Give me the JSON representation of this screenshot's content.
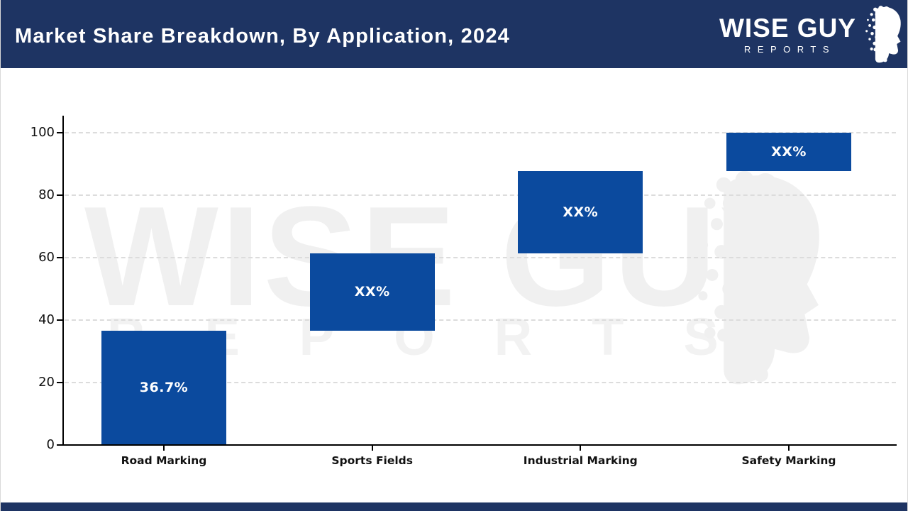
{
  "header": {
    "title": "Market Share Breakdown, By Application, 2024",
    "logo": {
      "line1": "WISE GUY",
      "line2": "REPORTS"
    }
  },
  "watermark": {
    "line1": "WISE GUY",
    "line2": "REPORTS"
  },
  "colors": {
    "header_bg": "#1e3463",
    "bar": "#0b4a9e",
    "bar_label": "#ffffff",
    "grid": "#dcdcdc",
    "axis": "#000000",
    "watermark": "#f0f0f0"
  },
  "chart_data": {
    "type": "bar",
    "subtype": "waterfall",
    "title": "Market Share Breakdown, By Application, 2024",
    "categories": [
      "Road Marking",
      "Sports Fields",
      "Industrial Marking",
      "Safety Marking"
    ],
    "bars": [
      {
        "category": "Road Marking",
        "start": 0,
        "end": 36.7,
        "label": "36.7%"
      },
      {
        "category": "Sports Fields",
        "start": 36.7,
        "end": 61.4,
        "label": "XX%"
      },
      {
        "category": "Industrial Marking",
        "start": 61.4,
        "end": 87.8,
        "label": "XX%"
      },
      {
        "category": "Safety Marking",
        "start": 87.8,
        "end": 100,
        "label": "XX%"
      }
    ],
    "xlabel": "",
    "ylabel": "",
    "ylim": [
      0,
      100
    ],
    "yticks": [
      0,
      20,
      40,
      60,
      80,
      100
    ],
    "grid": "horizontal-dashed",
    "legend": "none"
  }
}
